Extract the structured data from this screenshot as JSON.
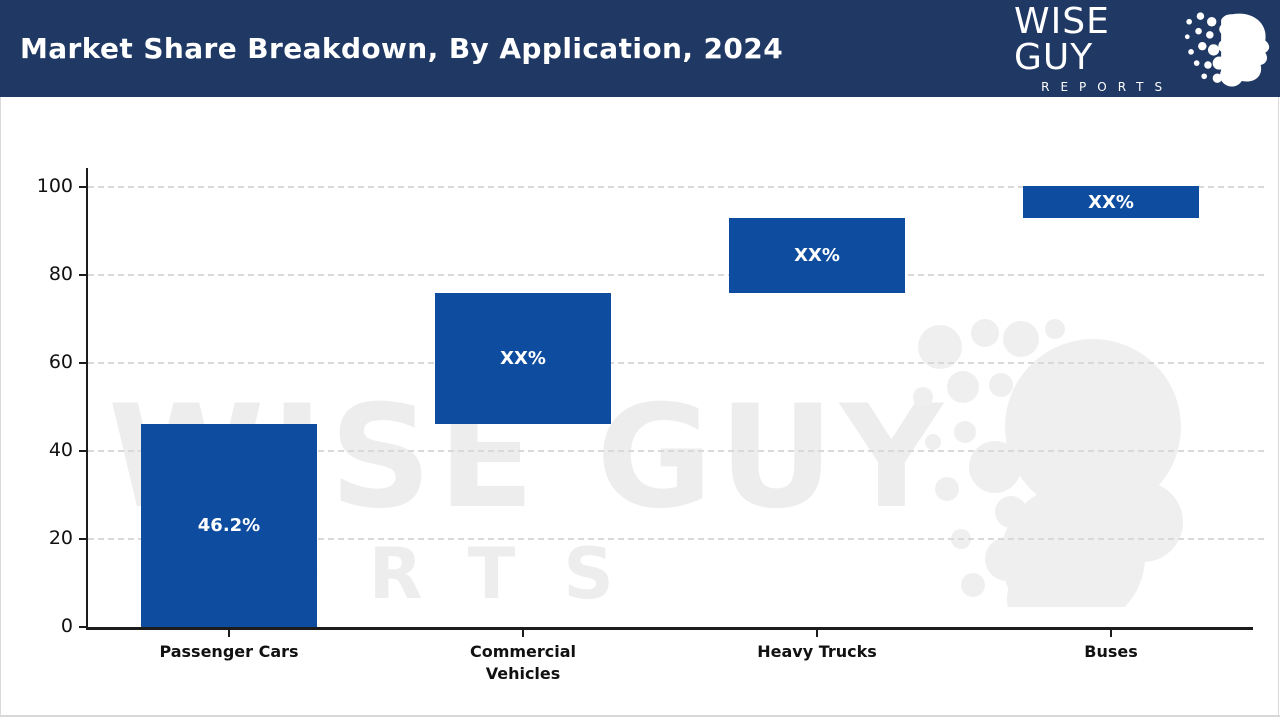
{
  "header": {
    "title": "Market Share Breakdown, By Application, 2024",
    "logo": {
      "primary": "WISE GUY",
      "secondary": "REPORTS"
    }
  },
  "watermark": {
    "line1": "WISE GUY",
    "line2": "PORTS"
  },
  "chart_data": {
    "type": "bar",
    "subtype": "waterfall-stacked",
    "title": "Market Share Breakdown, By Application, 2024",
    "categories": [
      "Passenger Cars",
      "Commercial Vehicles",
      "Heavy Trucks",
      "Buses"
    ],
    "segments": [
      {
        "category": "Passenger Cars",
        "label": "46.2%",
        "value": 46.2,
        "start": 0,
        "end": 46.2
      },
      {
        "category": "Commercial Vehicles",
        "label": "XX%",
        "value": 29.7,
        "start": 46.2,
        "end": 75.9
      },
      {
        "category": "Heavy Trucks",
        "label": "XX%",
        "value": 17.0,
        "start": 75.9,
        "end": 92.9
      },
      {
        "category": "Buses",
        "label": "XX%",
        "value": 7.3,
        "start": 92.9,
        "end": 100.2
      }
    ],
    "xlabel": "",
    "ylabel": "",
    "ylim": [
      0,
      100
    ],
    "yticks": [
      0,
      20,
      40,
      60,
      80,
      100
    ],
    "grid": "horizontal-dashed",
    "legend": "none",
    "bar_color": "#0d4c9f",
    "bar_label_color": "#ffffff",
    "axis_color": "#1c1c1c",
    "gridline_color": "#d9d9d9",
    "header_bg_color": "#1f3864",
    "watermark_color": "#ededed"
  }
}
